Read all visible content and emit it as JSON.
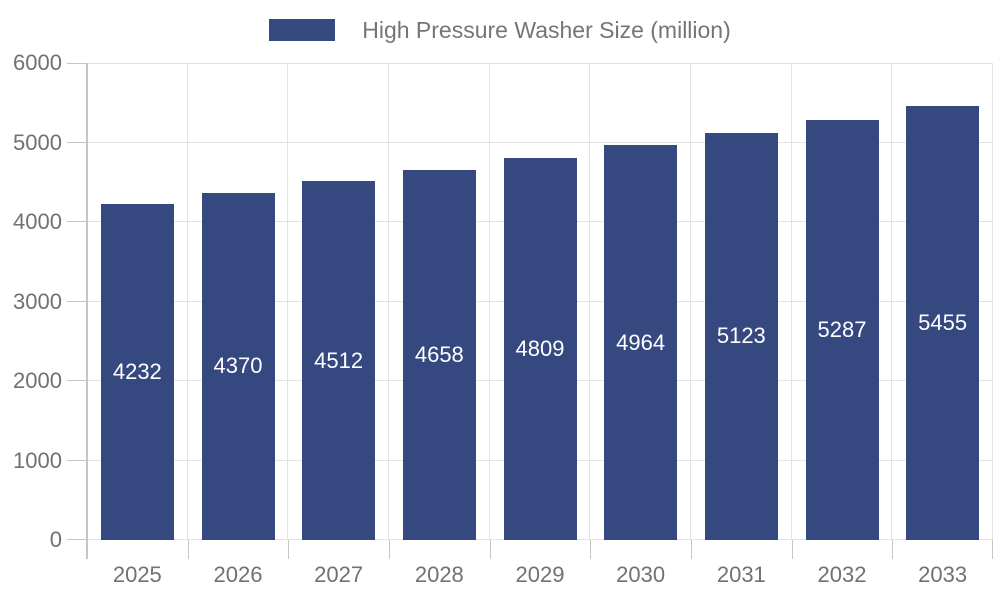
{
  "chart_data": {
    "type": "bar",
    "title": "",
    "legend": "High Pressure Washer Size (million)",
    "legend_position": "top-center",
    "categories": [
      "2025",
      "2026",
      "2027",
      "2028",
      "2029",
      "2030",
      "2031",
      "2032",
      "2033"
    ],
    "series": [
      {
        "name": "High Pressure Washer Size (million)",
        "values": [
          4232,
          4370,
          4512,
          4658,
          4809,
          4964,
          5123,
          5287,
          5455
        ]
      }
    ],
    "value_labels_shown": true,
    "xlabel": "",
    "ylabel": "",
    "ylim": [
      0,
      6000
    ],
    "yticks": [
      0,
      1000,
      2000,
      3000,
      4000,
      5000,
      6000
    ],
    "grid": true,
    "colors": {
      "bar": "#364880",
      "gridline": "#e3e3e3",
      "axis_line": "#c5c5c5",
      "axis_text": "#717171",
      "legend_text": "#757575",
      "value_text": "#ffffff",
      "background": "#ffffff"
    }
  }
}
